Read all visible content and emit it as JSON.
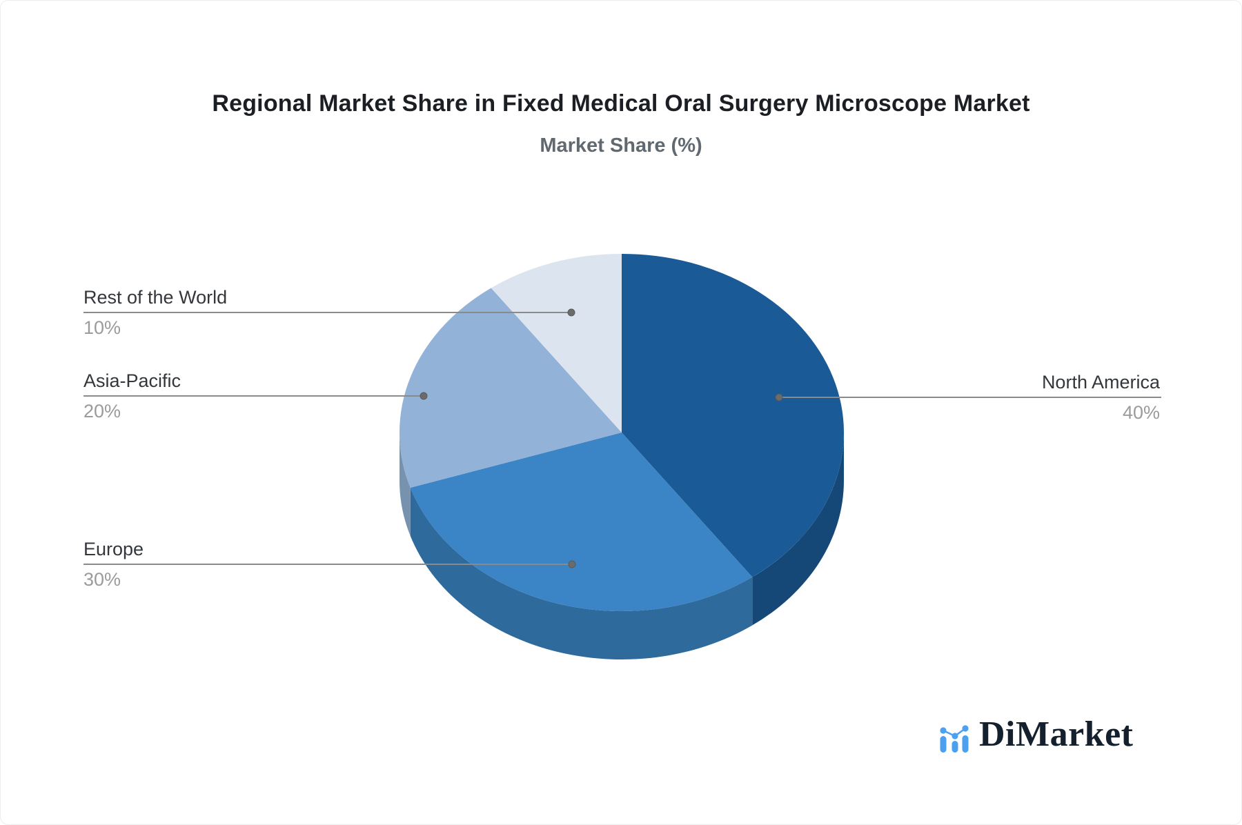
{
  "header": {
    "title": "Regional Market Share in Fixed Medical Oral Surgery Microscope Market",
    "subtitle": "Market Share (%)"
  },
  "chart_data": {
    "type": "pie",
    "title": "Regional Market Share in Fixed Medical Oral Surgery Microscope Market",
    "subtitle": "Market Share (%)",
    "unit": "%",
    "effect": "3d",
    "start_angle_deg": 0,
    "direction": "clockwise",
    "legend_position": "none",
    "labels_style": "leader-lines-with-dots",
    "series": [
      {
        "name": "North America",
        "value": 40,
        "label": "40%",
        "color": "#1A5A96",
        "side_color": "#154876"
      },
      {
        "name": "Europe",
        "value": 30,
        "label": "30%",
        "color": "#3B84C6",
        "side_color": "#2F6A9C"
      },
      {
        "name": "Asia-Pacific",
        "value": 20,
        "label": "20%",
        "color": "#93B2D7",
        "side_color": "#7792AF"
      },
      {
        "name": "Rest of the World",
        "value": 10,
        "label": "10%",
        "color": "#DCE4EF",
        "side_color": "#B8C4D6"
      }
    ],
    "connector_color": "#8a8a8a",
    "dot_color": "#6b6b6b"
  },
  "branding": {
    "logo_text": "DiMarket",
    "logo_icon": "bar-line-chart-icon",
    "logo_icon_color": "#4CA0F0",
    "logo_text_color": "#15202e"
  }
}
